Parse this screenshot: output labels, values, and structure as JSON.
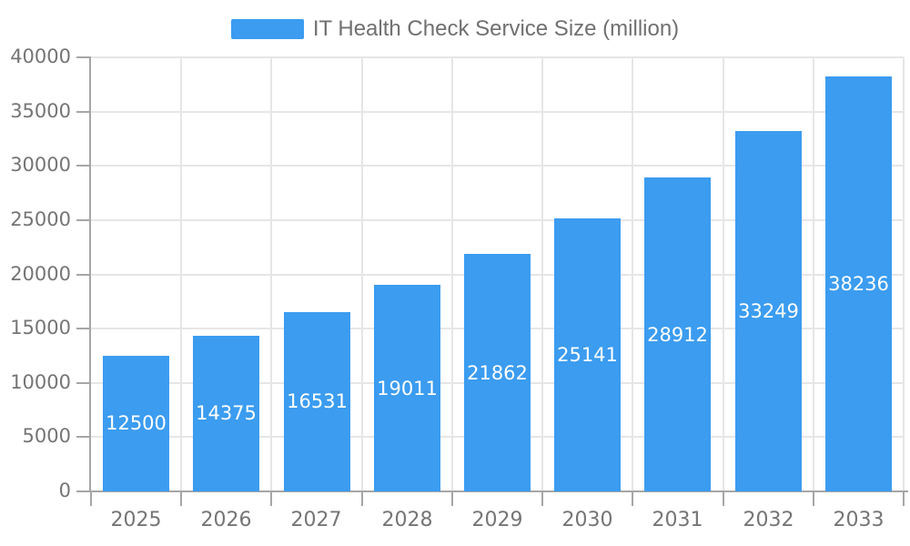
{
  "legend": {
    "label": "IT Health Check Service Size (million)"
  },
  "chart_data": {
    "type": "bar",
    "title": "IT Health Check Service Size (million)",
    "series_name": "IT Health Check Service Size (million)",
    "categories": [
      "2025",
      "2026",
      "2027",
      "2028",
      "2029",
      "2030",
      "2031",
      "2032",
      "2033"
    ],
    "values": [
      12500,
      14375,
      16531,
      19011,
      21862,
      25141,
      28912,
      33249,
      38236
    ],
    "xlabel": "",
    "ylabel": "",
    "ylim": [
      0,
      40000
    ],
    "yticks": [
      0,
      5000,
      10000,
      15000,
      20000,
      25000,
      30000,
      35000,
      40000
    ],
    "grid": true,
    "legend_position": "top-center",
    "value_labels": "inside-center",
    "colors": {
      "bar": "#3B9CF0",
      "bar_label_text": "#FFFFFF",
      "axis_line": "#A6A6A6",
      "grid_line": "#E6E6E6",
      "axis_text": "#757575",
      "legend_text": "#707070",
      "background": "#FFFFFF"
    }
  }
}
